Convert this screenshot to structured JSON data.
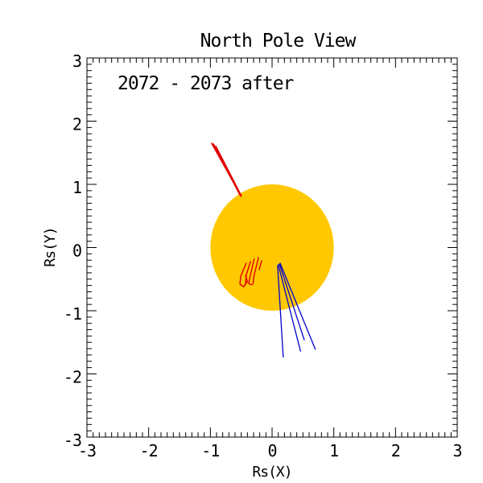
{
  "title": "North Pole View",
  "annotation": "2072 - 2073 after",
  "axes": {
    "xlabel": "Rs(X)",
    "ylabel": "Rs(Y)",
    "xlim": [
      -3,
      3
    ],
    "ylim": [
      -3,
      3
    ],
    "xticks": [
      -3,
      -2,
      -1,
      0,
      1,
      2,
      3
    ],
    "yticks": [
      -3,
      -2,
      -1,
      0,
      1,
      2,
      3
    ],
    "minor_tick_interval": 0.1
  },
  "colors": {
    "background": "#FFFFFF",
    "axis": "#000000",
    "text": "#000000",
    "sun": "#FFC800",
    "red_field_line": "#E00000",
    "blue_field_line": "#0000CC"
  },
  "chart_data": {
    "type": "line",
    "title": "North Pole View",
    "subtitle": "2072 - 2073 after",
    "xlabel": "Rs(X)",
    "ylabel": "Rs(Y)",
    "xlim": [
      -3,
      3
    ],
    "ylim": [
      -3,
      3
    ],
    "xticks": [
      -3,
      -2,
      -1,
      0,
      1,
      2,
      3
    ],
    "yticks": [
      -3,
      -2,
      -1,
      0,
      1,
      2,
      3
    ],
    "minor_tick_interval": 0.1,
    "grid": false,
    "legend": false,
    "sun_disk": {
      "center": [
        0,
        0
      ],
      "radius": 1,
      "color": "#FFC800"
    },
    "series": [
      {
        "name": "red-coronal-loop-bundle",
        "color": "#E00000",
        "width": 1.6,
        "lines": [
          [
            [
              -0.98,
              1.65
            ],
            [
              -0.5,
              0.81
            ]
          ],
          [
            [
              -0.91,
              1.6
            ],
            [
              -0.5,
              0.82
            ]
          ],
          [
            [
              -0.95,
              1.64
            ],
            [
              -0.52,
              0.83
            ]
          ]
        ]
      },
      {
        "name": "red-surface-loops",
        "color": "#E00000",
        "width": 1.4,
        "lines": [
          [
            [
              -0.42,
              -0.25
            ],
            [
              -0.51,
              -0.46
            ],
            [
              -0.52,
              -0.58
            ],
            [
              -0.46,
              -0.62
            ],
            [
              -0.4,
              -0.54
            ],
            [
              -0.43,
              -0.44
            ]
          ],
          [
            [
              -0.35,
              -0.22
            ],
            [
              -0.42,
              -0.44
            ],
            [
              -0.43,
              -0.57
            ]
          ],
          [
            [
              -0.29,
              -0.18
            ],
            [
              -0.35,
              -0.43
            ],
            [
              -0.38,
              -0.57
            ],
            [
              -0.33,
              -0.59
            ]
          ],
          [
            [
              -0.22,
              -0.16
            ],
            [
              -0.29,
              -0.43
            ],
            [
              -0.31,
              -0.58
            ]
          ],
          [
            [
              -0.17,
              -0.21
            ],
            [
              -0.21,
              -0.35
            ]
          ]
        ]
      },
      {
        "name": "blue-open-field-lines",
        "color": "#0000CC",
        "width": 1.3,
        "lines": [
          [
            [
              0.09,
              -0.29
            ],
            [
              0.18,
              -1.73
            ]
          ],
          [
            [
              0.1,
              -0.27
            ],
            [
              0.46,
              -1.64
            ]
          ],
          [
            [
              0.12,
              -0.26
            ],
            [
              0.52,
              -1.46
            ]
          ],
          [
            [
              0.13,
              -0.25
            ],
            [
              0.7,
              -1.61
            ]
          ]
        ]
      }
    ]
  }
}
